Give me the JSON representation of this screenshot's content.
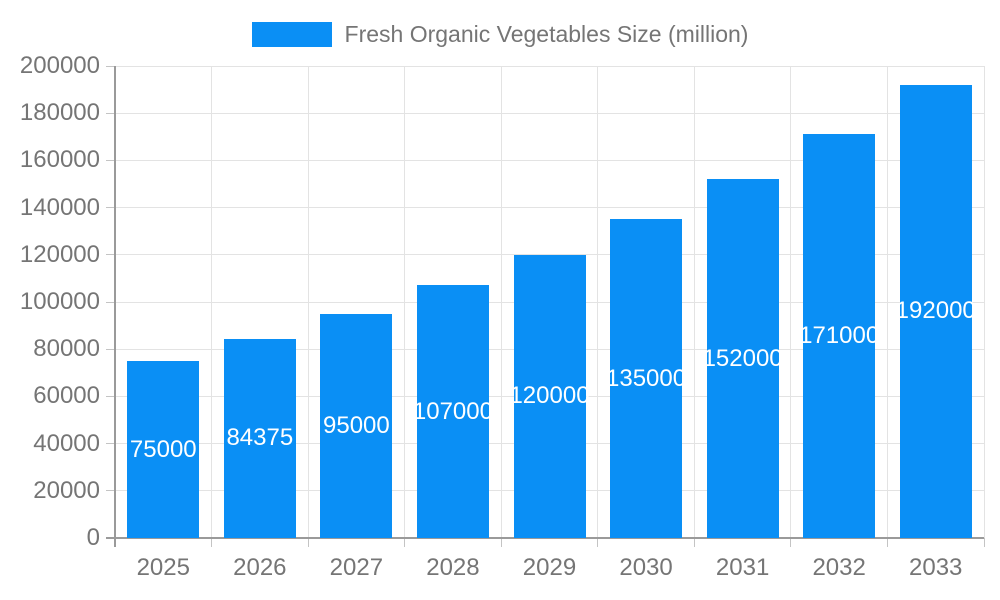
{
  "legend": {
    "series_label": "Fresh Organic Vegetables Size (million)"
  },
  "chart_data": {
    "type": "bar",
    "title": "Fresh Organic Vegetables Size (million)",
    "categories": [
      "2025",
      "2026",
      "2027",
      "2028",
      "2029",
      "2030",
      "2031",
      "2032",
      "2033"
    ],
    "values": [
      75000,
      84375,
      95000,
      107000,
      120000,
      135000,
      152000,
      171000,
      192000
    ],
    "bar_labels": [
      "75000",
      "84375",
      "95000",
      "107000",
      "120000",
      "135000",
      "152000",
      "171000",
      "192000"
    ],
    "xlabel": "",
    "ylabel": "",
    "ylim": [
      0,
      200000
    ],
    "ytick_step": 20000,
    "ytick_labels": [
      "0",
      "20000",
      "40000",
      "60000",
      "80000",
      "100000",
      "120000",
      "140000",
      "160000",
      "180000",
      "200000"
    ],
    "grid": true,
    "legend_position": "top",
    "colors": {
      "bar": "#0A8FF5",
      "bar_label": "#FFFFFF",
      "axis_text": "#757575",
      "gridline": "#E3E3E3",
      "axis_line": "#9A9A9A",
      "tick": "#C4C4C4",
      "background": "#FFFFFF"
    }
  }
}
